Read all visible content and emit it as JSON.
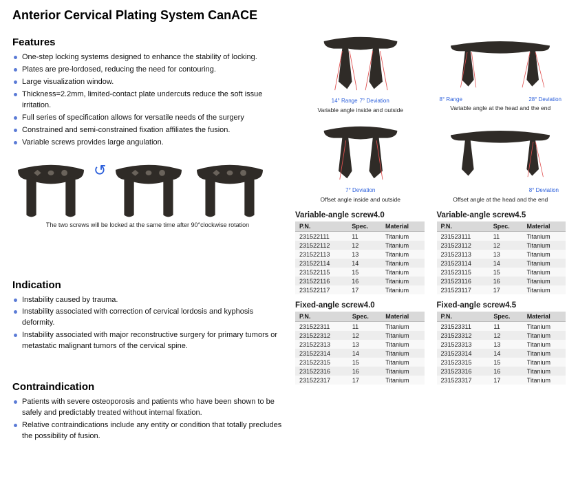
{
  "title": "Anterior Cervical Plating System CanACE",
  "features": {
    "heading": "Features",
    "items": [
      "One-step locking systems designed to enhance the stability of locking.",
      "Plates are pre-lordosed, reducing the need for contouring.",
      "Large visualization window.",
      "Thickness=2.2mm, limited-contact plate undercuts reduce the soft issue irritation.",
      "Full series of specification allows for versatile needs of the surgery",
      "Constrained and semi-constrained fixation affiliates the fusion.",
      "Variable screws provides large angulation."
    ]
  },
  "plate_caption": "The two screws will be locked at the same time after 90°clockwise rotation",
  "diagrams": {
    "row1": {
      "left": {
        "label_a": "14° Range",
        "label_b": "7° Deviation",
        "caption": "Variable angle inside and outside"
      },
      "right": {
        "label_a": "8° Range",
        "label_b": "28° Deviation",
        "caption": "Variable angle at the head and the end"
      }
    },
    "row2": {
      "left": {
        "label_a": "7° Deviation",
        "caption": "Offset angle inside and outside"
      },
      "right": {
        "label_a": "8° Deviation",
        "caption": "Offset angle at the head and the end"
      }
    }
  },
  "indication": {
    "heading": "Indication",
    "items": [
      "Instability caused by trauma.",
      "Instability associated with correction of cervical lordosis and kyphosis deformity.",
      "Instability associated with major reconstructive surgery for primary tumors or metastatic malignant tumors of the cervical spine."
    ]
  },
  "contraindication": {
    "heading": "Contraindication",
    "items": [
      "Patients with severe osteoporosis and patients who have been shown to be safely and predictably treated without internal fixation.",
      "Relative contraindications include any entity or condition that totally precludes the possibility of fusion."
    ]
  },
  "tables": {
    "columns": [
      "P.N.",
      "Spec.",
      "Material"
    ],
    "blocks": [
      {
        "title": "Variable-angle screw4.0",
        "rows": [
          [
            "231522111",
            "11",
            "Titanium"
          ],
          [
            "231522112",
            "12",
            "Titanium"
          ],
          [
            "231522113",
            "13",
            "Titanium"
          ],
          [
            "231522114",
            "14",
            "Titanium"
          ],
          [
            "231522115",
            "15",
            "Titanium"
          ],
          [
            "231522116",
            "16",
            "Titanium"
          ],
          [
            "231522117",
            "17",
            "Titanium"
          ]
        ]
      },
      {
        "title": "Variable-angle screw4.5",
        "rows": [
          [
            "231523111",
            "11",
            "Titanium"
          ],
          [
            "231523112",
            "12",
            "Titanium"
          ],
          [
            "231523113",
            "13",
            "Titanium"
          ],
          [
            "231523114",
            "14",
            "Titanium"
          ],
          [
            "231523115",
            "15",
            "Titanium"
          ],
          [
            "231523116",
            "16",
            "Titanium"
          ],
          [
            "231523117",
            "17",
            "Titanium"
          ]
        ]
      },
      {
        "title": "Fixed-angle screw4.0",
        "rows": [
          [
            "231522311",
            "11",
            "Titanium"
          ],
          [
            "231522312",
            "12",
            "Titanium"
          ],
          [
            "231522313",
            "13",
            "Titanium"
          ],
          [
            "231522314",
            "14",
            "Titanium"
          ],
          [
            "231522315",
            "15",
            "Titanium"
          ],
          [
            "231522316",
            "16",
            "Titanium"
          ],
          [
            "231522317",
            "17",
            "Titanium"
          ]
        ]
      },
      {
        "title": "Fixed-angle screw4.5",
        "rows": [
          [
            "231523311",
            "11",
            "Titanium"
          ],
          [
            "231523312",
            "12",
            "Titanium"
          ],
          [
            "231523313",
            "13",
            "Titanium"
          ],
          [
            "231523314",
            "14",
            "Titanium"
          ],
          [
            "231523315",
            "15",
            "Titanium"
          ],
          [
            "231523316",
            "16",
            "Titanium"
          ],
          [
            "231523317",
            "17",
            "Titanium"
          ]
        ]
      }
    ]
  },
  "colors": {
    "bullet": "#5b7bd6",
    "angle_label": "#2a5edb",
    "plate": "#2f2b27",
    "angle_line": "#e05050",
    "table_header_bg": "#d9d9d9",
    "table_row_alt_bg": "#ededed"
  }
}
